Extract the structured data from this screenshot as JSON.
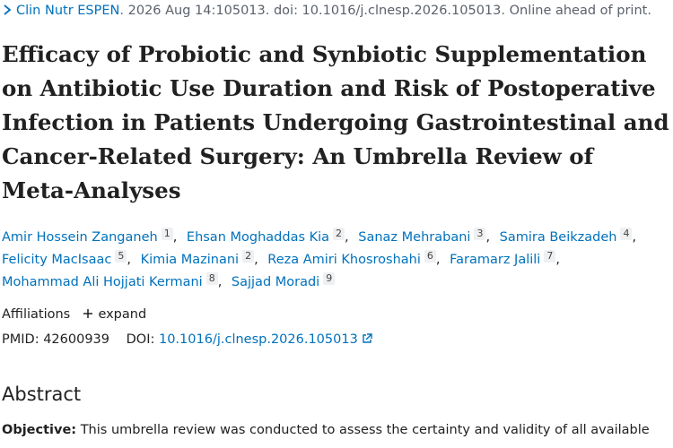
{
  "header": {
    "journal": "Clin Nutr ESPEN",
    "citation": ". 2026 Aug 14:105013. doi: 10.1016/j.clnesp.2026.105013. Online ahead of print."
  },
  "title": "Efficacy of Probiotic and Synbiotic Supplementation on Antibiotic Use Duration and Risk of Postoperative Infection in Patients Undergoing Gastrointestinal and Cancer-Related Surgery: An Umbrella Review of Meta-Analyses",
  "authors": [
    {
      "name": "Amir Hossein Zanganeh",
      "affiliation": "1"
    },
    {
      "name": "Ehsan Moghaddas Kia",
      "affiliation": "2"
    },
    {
      "name": "Sanaz Mehrabani",
      "affiliation": "3"
    },
    {
      "name": "Samira Beikzadeh",
      "affiliation": "4"
    },
    {
      "name": "Felicity MacIsaac",
      "affiliation": "5"
    },
    {
      "name": "Kimia Mazinani",
      "affiliation": "2"
    },
    {
      "name": "Reza Amiri Khosroshahi",
      "affiliation": "6"
    },
    {
      "name": "Faramarz Jalili",
      "affiliation": "7"
    },
    {
      "name": "Mohammad Ali Hojjati Kermani",
      "affiliation": "8"
    },
    {
      "name": "Sajjad Moradi",
      "affiliation": "9"
    }
  ],
  "affiliations": {
    "label": "Affiliations",
    "toggle": "expand"
  },
  "ids": {
    "pmid_label": "PMID:",
    "pmid": "42600939",
    "doi_label": "DOI:",
    "doi": "10.1016/j.clnesp.2026.105013"
  },
  "abstract": {
    "heading": "Abstract",
    "objective_label": "Objective:",
    "objective_text": "This umbrella review was conducted to assess the certainty and validity of all available"
  }
}
